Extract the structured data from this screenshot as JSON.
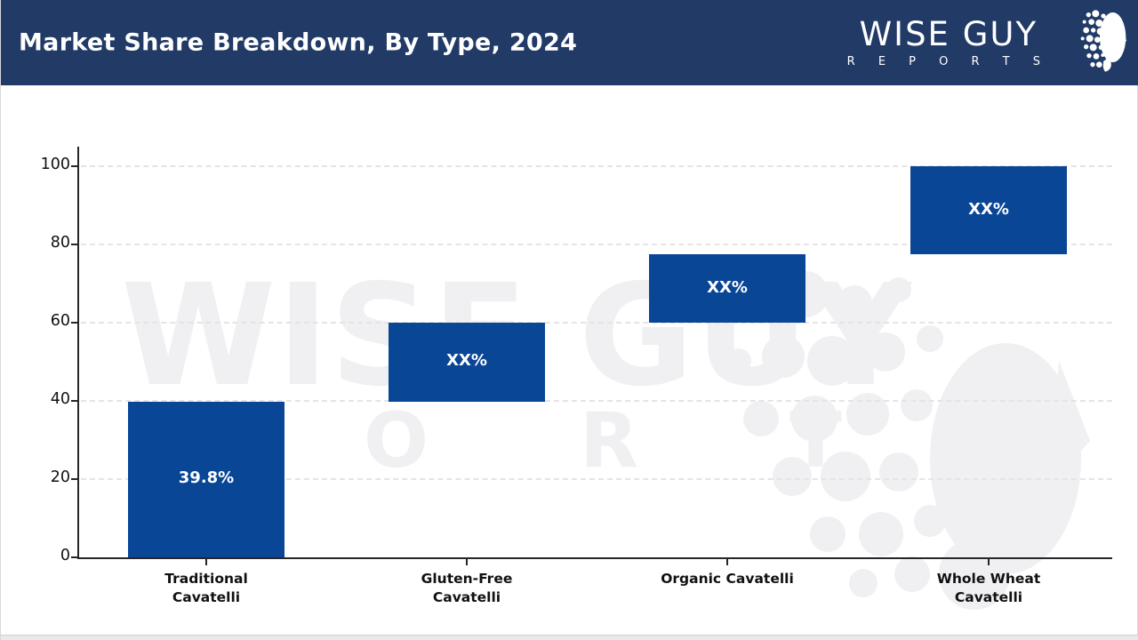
{
  "header": {
    "title": "Market Share Breakdown, By Type, 2024",
    "logo": {
      "line1": "WISE GUY",
      "line2": "R E P O R T S"
    }
  },
  "watermark": {
    "line1": "WISE GUY",
    "line2": "P O R T S"
  },
  "colors": {
    "header_bg": "#213a66",
    "bar": "#0a4696",
    "bar_label_text": "#ffffff",
    "axis": "#262626",
    "gridline": "#e4e4e6",
    "watermark": "#f0f0f2"
  },
  "chart_data": {
    "type": "bar",
    "subtype": "waterfall",
    "title": "Market Share Breakdown, By Type, 2024",
    "categories": [
      "Traditional Cavatelli",
      "Gluten-Free Cavatelli",
      "Organic Cavatelli",
      "Whole Wheat Cavatelli"
    ],
    "category_lines": [
      [
        "Traditional",
        "Cavatelli"
      ],
      [
        "Gluten-Free",
        "Cavatelli"
      ],
      [
        "Organic Cavatelli"
      ],
      [
        "Whole Wheat",
        "Cavatelli"
      ]
    ],
    "segments": [
      {
        "category": "Traditional Cavatelli",
        "start": 0,
        "end": 39.8,
        "value": 39.8,
        "bar_label": "39.8%"
      },
      {
        "category": "Gluten-Free Cavatelli",
        "start": 39.8,
        "end": 60.0,
        "value": 20.2,
        "bar_label": "XX%"
      },
      {
        "category": "Organic Cavatelli",
        "start": 60.0,
        "end": 77.5,
        "value": 17.5,
        "bar_label": "XX%"
      },
      {
        "category": "Whole Wheat Cavatelli",
        "start": 77.5,
        "end": 100,
        "value": 22.5,
        "bar_label": "XX%"
      }
    ],
    "yticks": [
      0,
      20,
      40,
      60,
      80,
      100
    ],
    "ylim": [
      0,
      105
    ],
    "xlabel": "",
    "ylabel": "",
    "grid": "horizontal-dashed",
    "legend": "none"
  }
}
